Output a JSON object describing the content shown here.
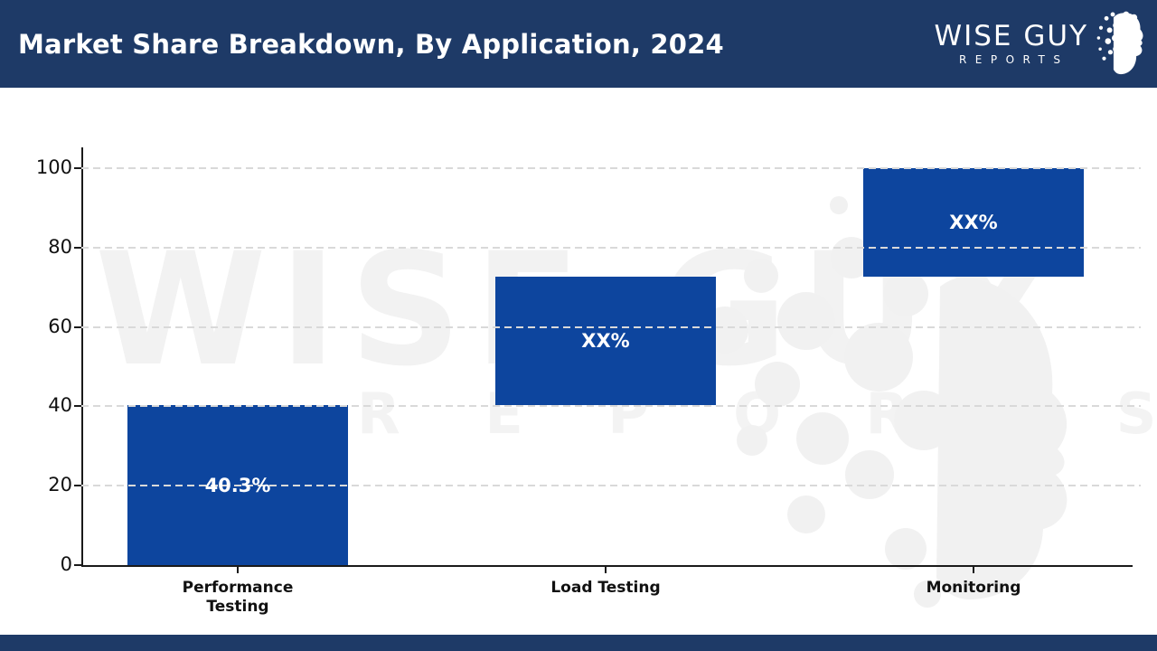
{
  "header": {
    "title": "Market Share Breakdown, By Application, 2024",
    "logo_line1": "WISE GUY",
    "logo_line2": "REPORTS"
  },
  "watermark": {
    "line1": "WISE GUY",
    "line2": "R E P O R T S"
  },
  "chart_data": {
    "type": "bar",
    "variant": "waterfall",
    "title": "Market Share Breakdown, By Application, 2024",
    "categories": [
      "Performance\nTesting",
      "Load Testing",
      "Monitoring"
    ],
    "bars": [
      {
        "category": "Performance Testing",
        "start": 0,
        "end": 40.3,
        "label": "40.3%"
      },
      {
        "category": "Load Testing",
        "start": 40.3,
        "end": 72.7,
        "label": "XX%"
      },
      {
        "category": "Monitoring",
        "start": 72.7,
        "end": 100,
        "label": "XX%"
      }
    ],
    "yticks": [
      0,
      20,
      40,
      60,
      80,
      100
    ],
    "ylim": [
      0,
      104.8
    ],
    "grid": true,
    "grid_style": "dashed",
    "legend": "none",
    "colors": {
      "bar": "#0d459e",
      "bar_label": "#ffffff",
      "axis": "#1a1a1a",
      "grid": "#d9d9d9",
      "header_bg": "#1e3a67",
      "text": "#111111"
    }
  }
}
